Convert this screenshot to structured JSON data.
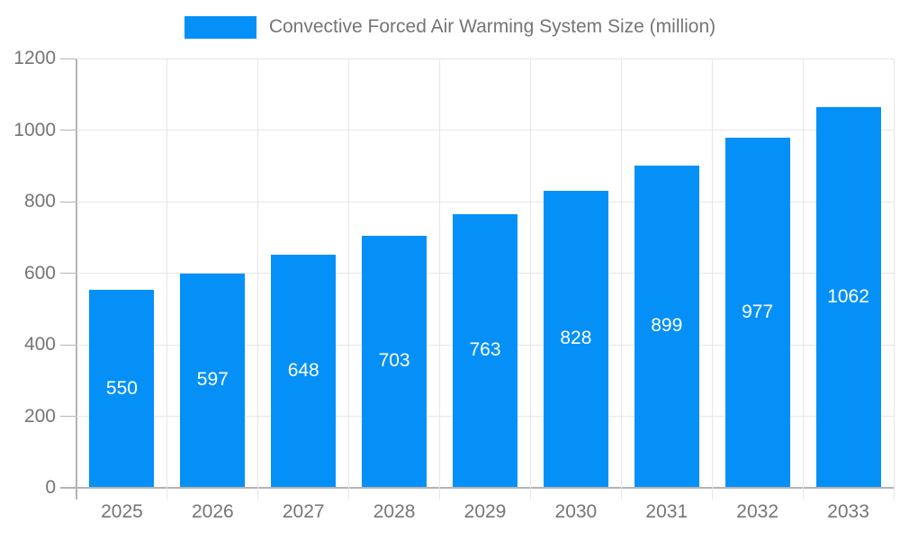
{
  "chart_data": {
    "type": "bar",
    "title": "Convective Forced Air Warming System Size (million)",
    "legend": [
      "Convective Forced Air Warming System Size (million)"
    ],
    "legend_position": "top",
    "categories": [
      "2025",
      "2026",
      "2027",
      "2028",
      "2029",
      "2030",
      "2031",
      "2032",
      "2033"
    ],
    "values": [
      550,
      597,
      648,
      703,
      763,
      828,
      899,
      977,
      1062
    ],
    "data_labels_visible": true,
    "xlabel": "",
    "ylabel": "",
    "ylim": [
      0,
      1200
    ],
    "yticks": [
      0,
      200,
      400,
      600,
      800,
      1000,
      1200
    ],
    "grid": true,
    "colors": {
      "bar": "#0590f8",
      "bar_label_text": "#ffffff",
      "axis_line": "#b3b3b3",
      "grid_line": "#e6e6e6",
      "tick_text": "#757575",
      "legend_text": "#757575",
      "background": "#ffffff"
    }
  }
}
